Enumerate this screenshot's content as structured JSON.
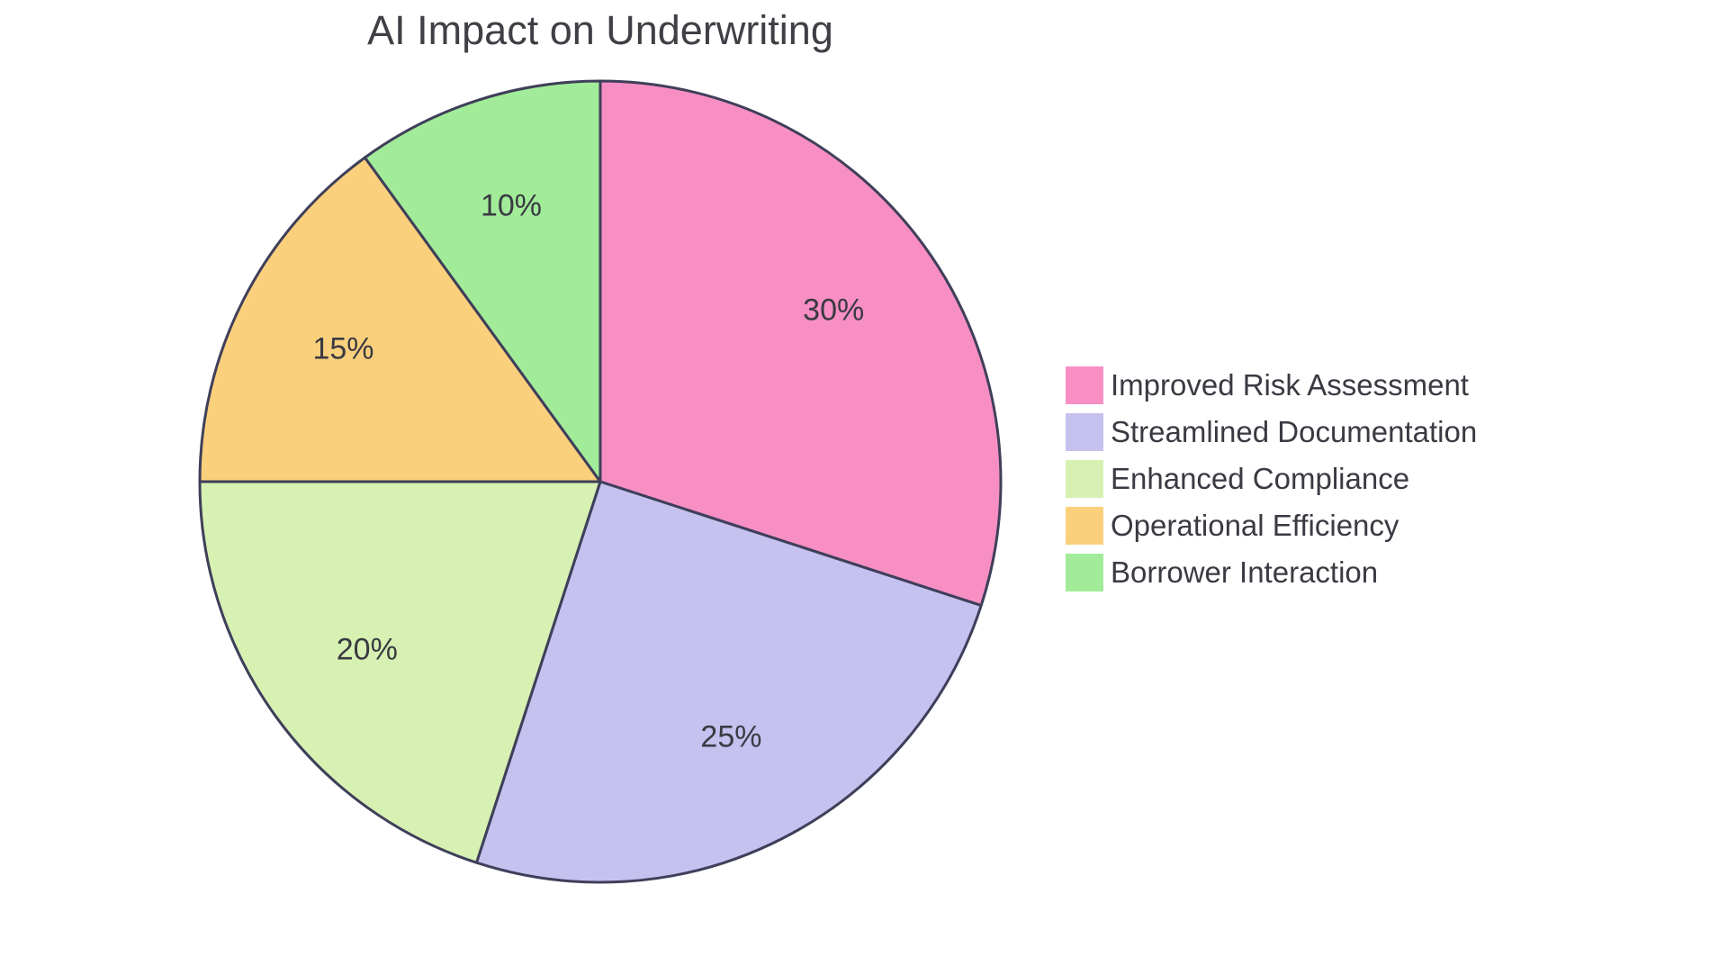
{
  "chart_data": {
    "type": "pie",
    "title": "AI Impact on Underwriting",
    "labels": [
      "Improved Risk Assessment",
      "Streamlined Documentation",
      "Enhanced Compliance",
      "Operational Efficiency",
      "Borrower Interaction"
    ],
    "values": [
      30,
      25,
      20,
      15,
      10
    ],
    "slice_labels": [
      "30%",
      "25%",
      "20%",
      "15%",
      "10%"
    ],
    "colors": [
      "#F78FC4",
      "#C5C2F0",
      "#D6F1B2",
      "#FBD07C",
      "#A2EC99"
    ],
    "stroke_color": "#3F3F5A",
    "start_angle_deg": 0,
    "direction": "clockwise",
    "legend_position": "right",
    "background_color": "#FFFFFF"
  }
}
